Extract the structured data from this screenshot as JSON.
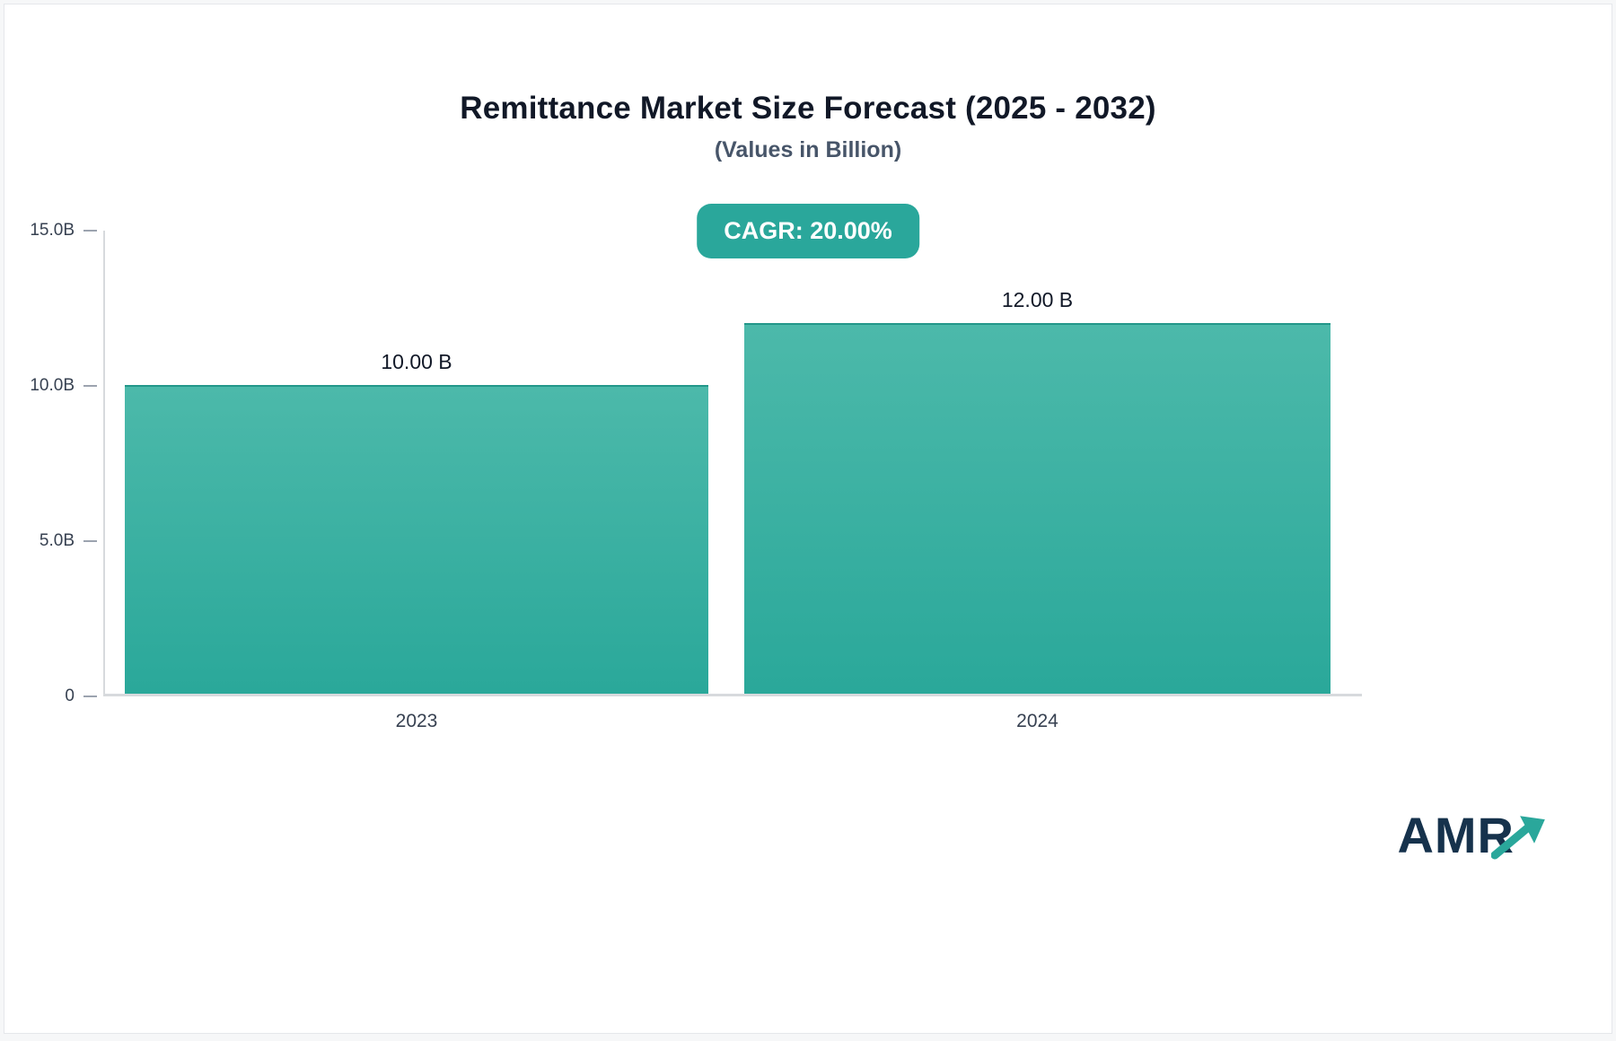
{
  "chart_data": {
    "type": "bar",
    "title": "Remittance Market Size Forecast (2025 - 2032)",
    "subtitle": "(Values in Billion)",
    "badge": "CAGR: 20.00%",
    "categories": [
      "2023",
      "2024"
    ],
    "values": [
      10.0,
      12.0
    ],
    "value_labels": [
      "10.00 B",
      "12.00 B"
    ],
    "ylim": [
      0,
      15
    ],
    "yticks": [
      15,
      10,
      5,
      0
    ],
    "ytick_labels": [
      "15.0B",
      "10.0B",
      "5.0B",
      "0"
    ],
    "xlabel": "",
    "ylabel": "",
    "grid": "off",
    "legend": "none",
    "bar_color_top": "#4cb9aa",
    "bar_color_bottom": "#2aa89a",
    "accent_color": "#2aa79b"
  },
  "logo": {
    "text": "AMR"
  }
}
